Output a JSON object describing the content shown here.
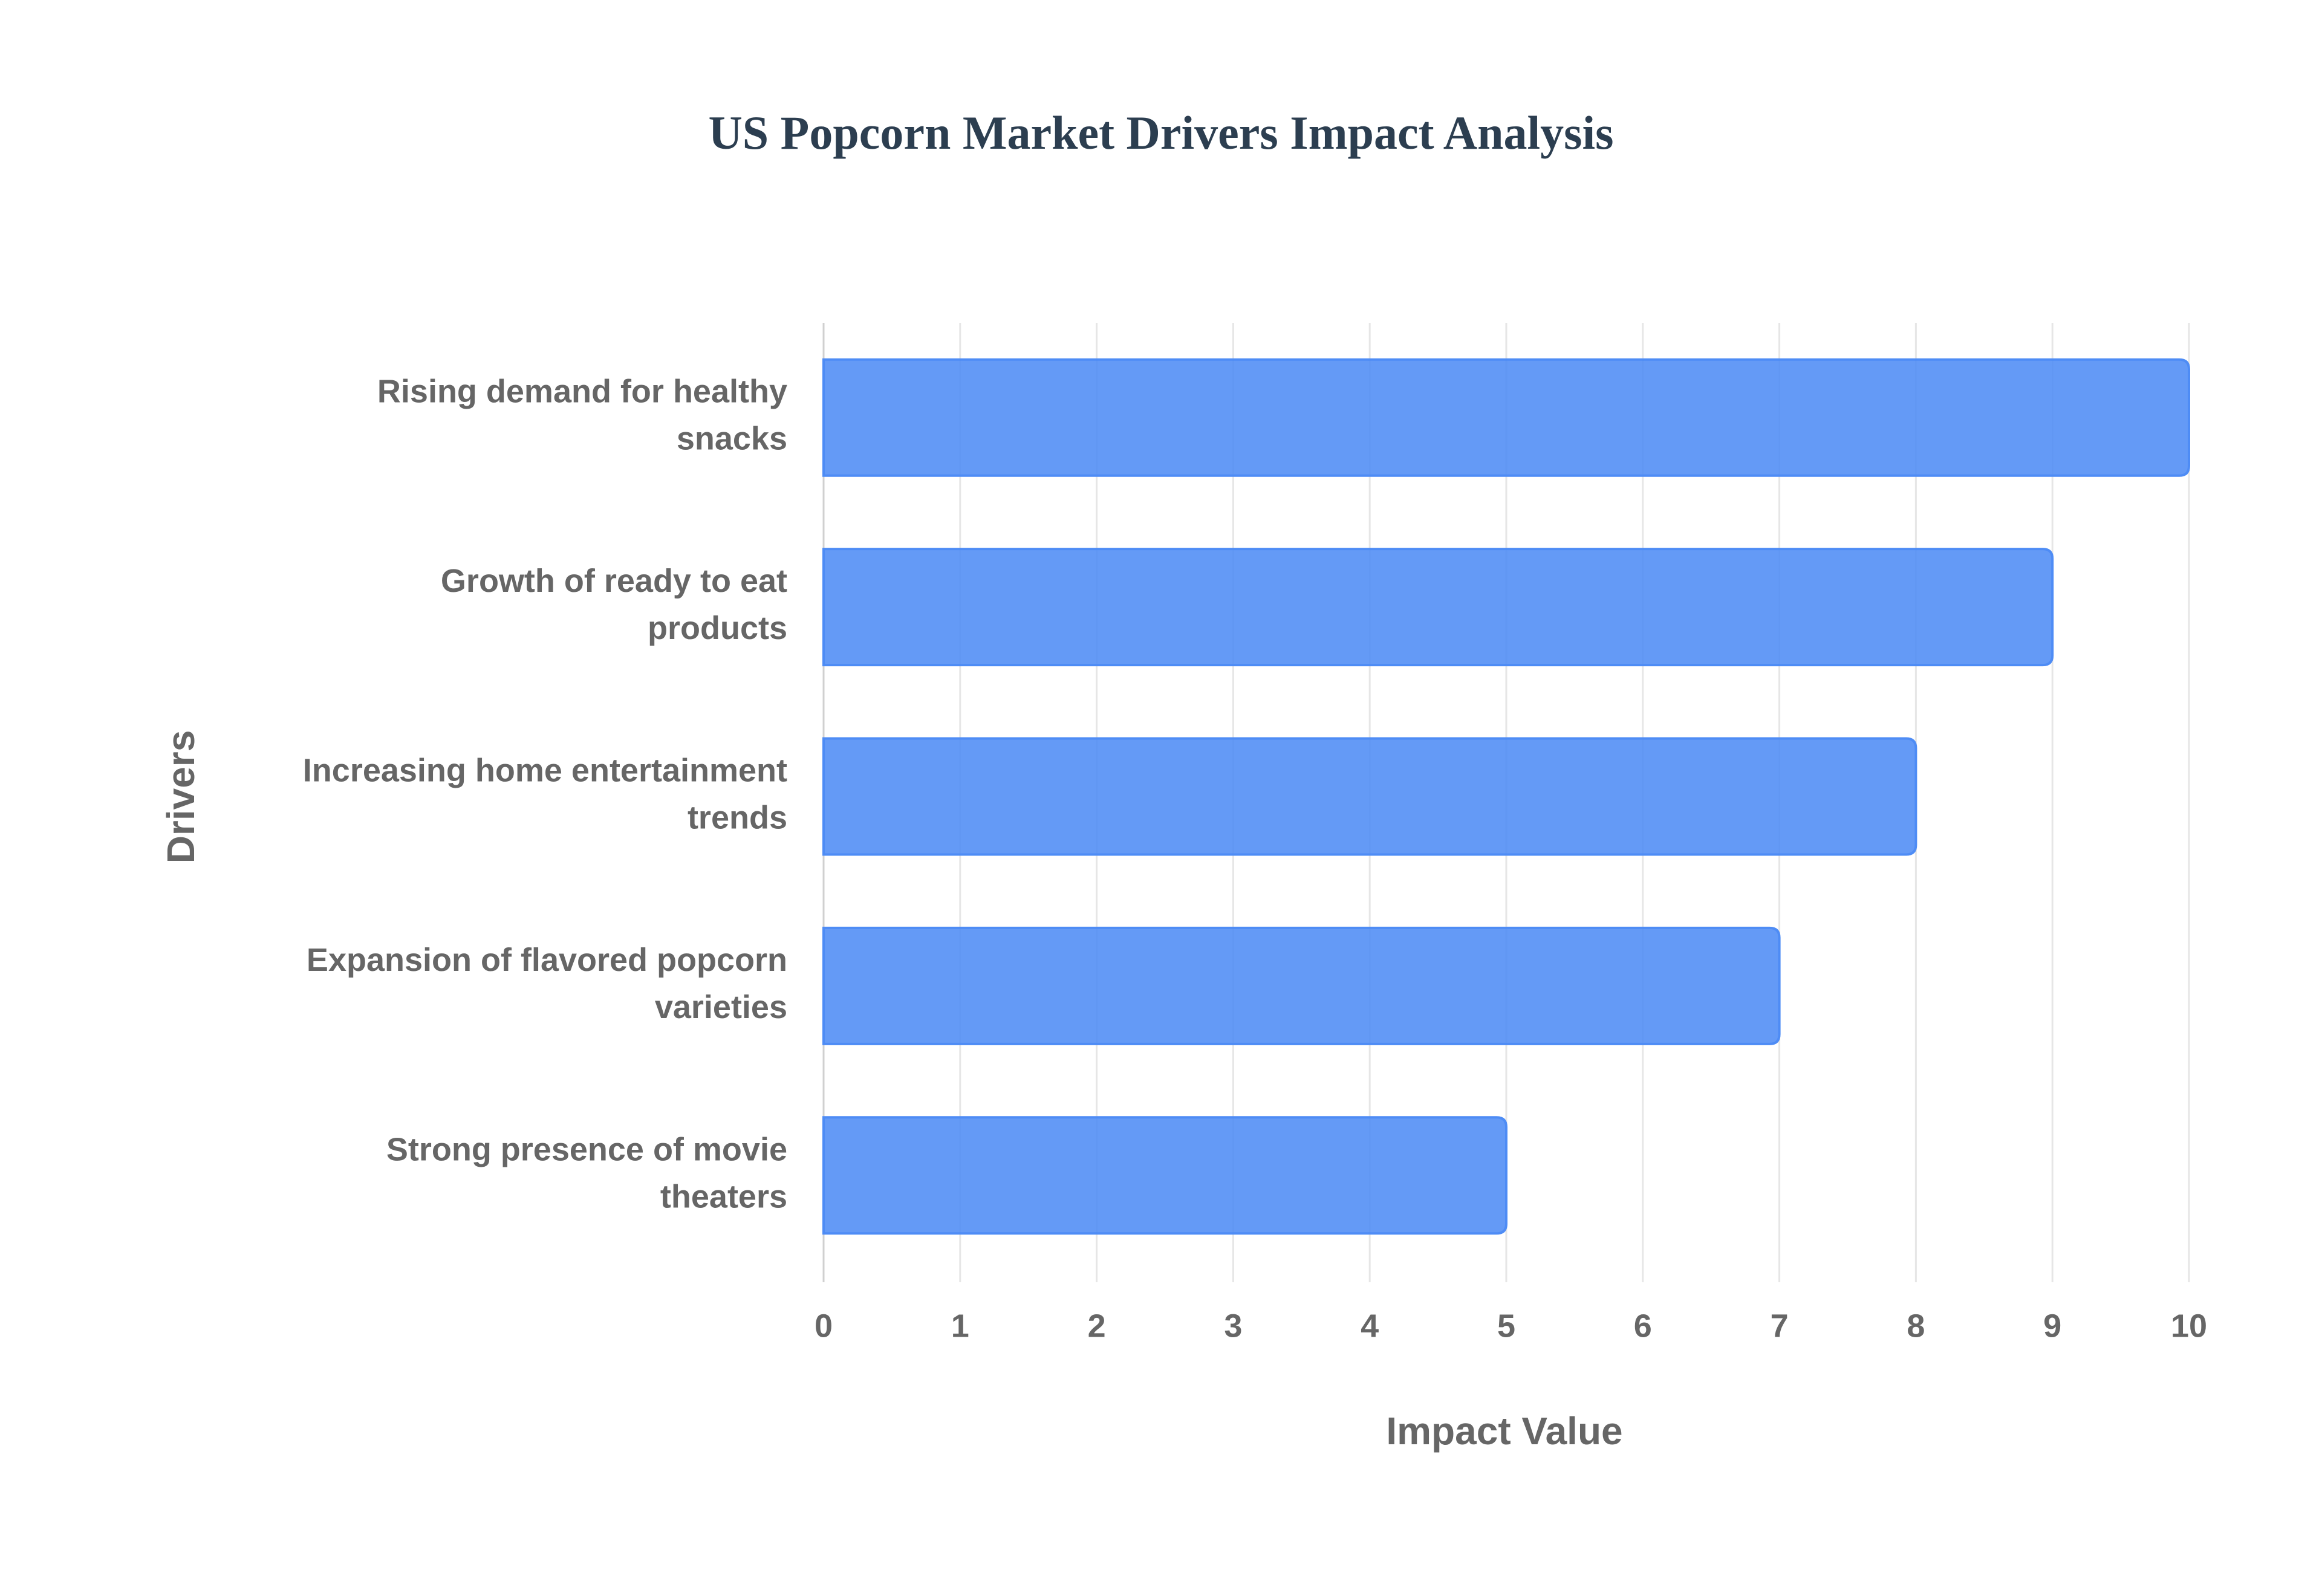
{
  "chart_data": {
    "type": "bar",
    "orientation": "horizontal",
    "title": "US Popcorn Market Drivers Impact Analysis",
    "x_label": "Impact Value",
    "y_label": "Drivers",
    "categories": [
      "Rising demand for healthy snacks",
      "Growth of ready to eat products",
      "Increasing home entertainment trends",
      "Expansion of flavored popcorn varieties",
      "Strong presence of movie theaters"
    ],
    "values": [
      10,
      9,
      8,
      7,
      5
    ],
    "color": "#4e8cf5",
    "xlim": [
      0,
      10
    ],
    "xticks": [
      0,
      1,
      2,
      3,
      4,
      5,
      6,
      7,
      8,
      9,
      10
    ],
    "grid": true
  }
}
